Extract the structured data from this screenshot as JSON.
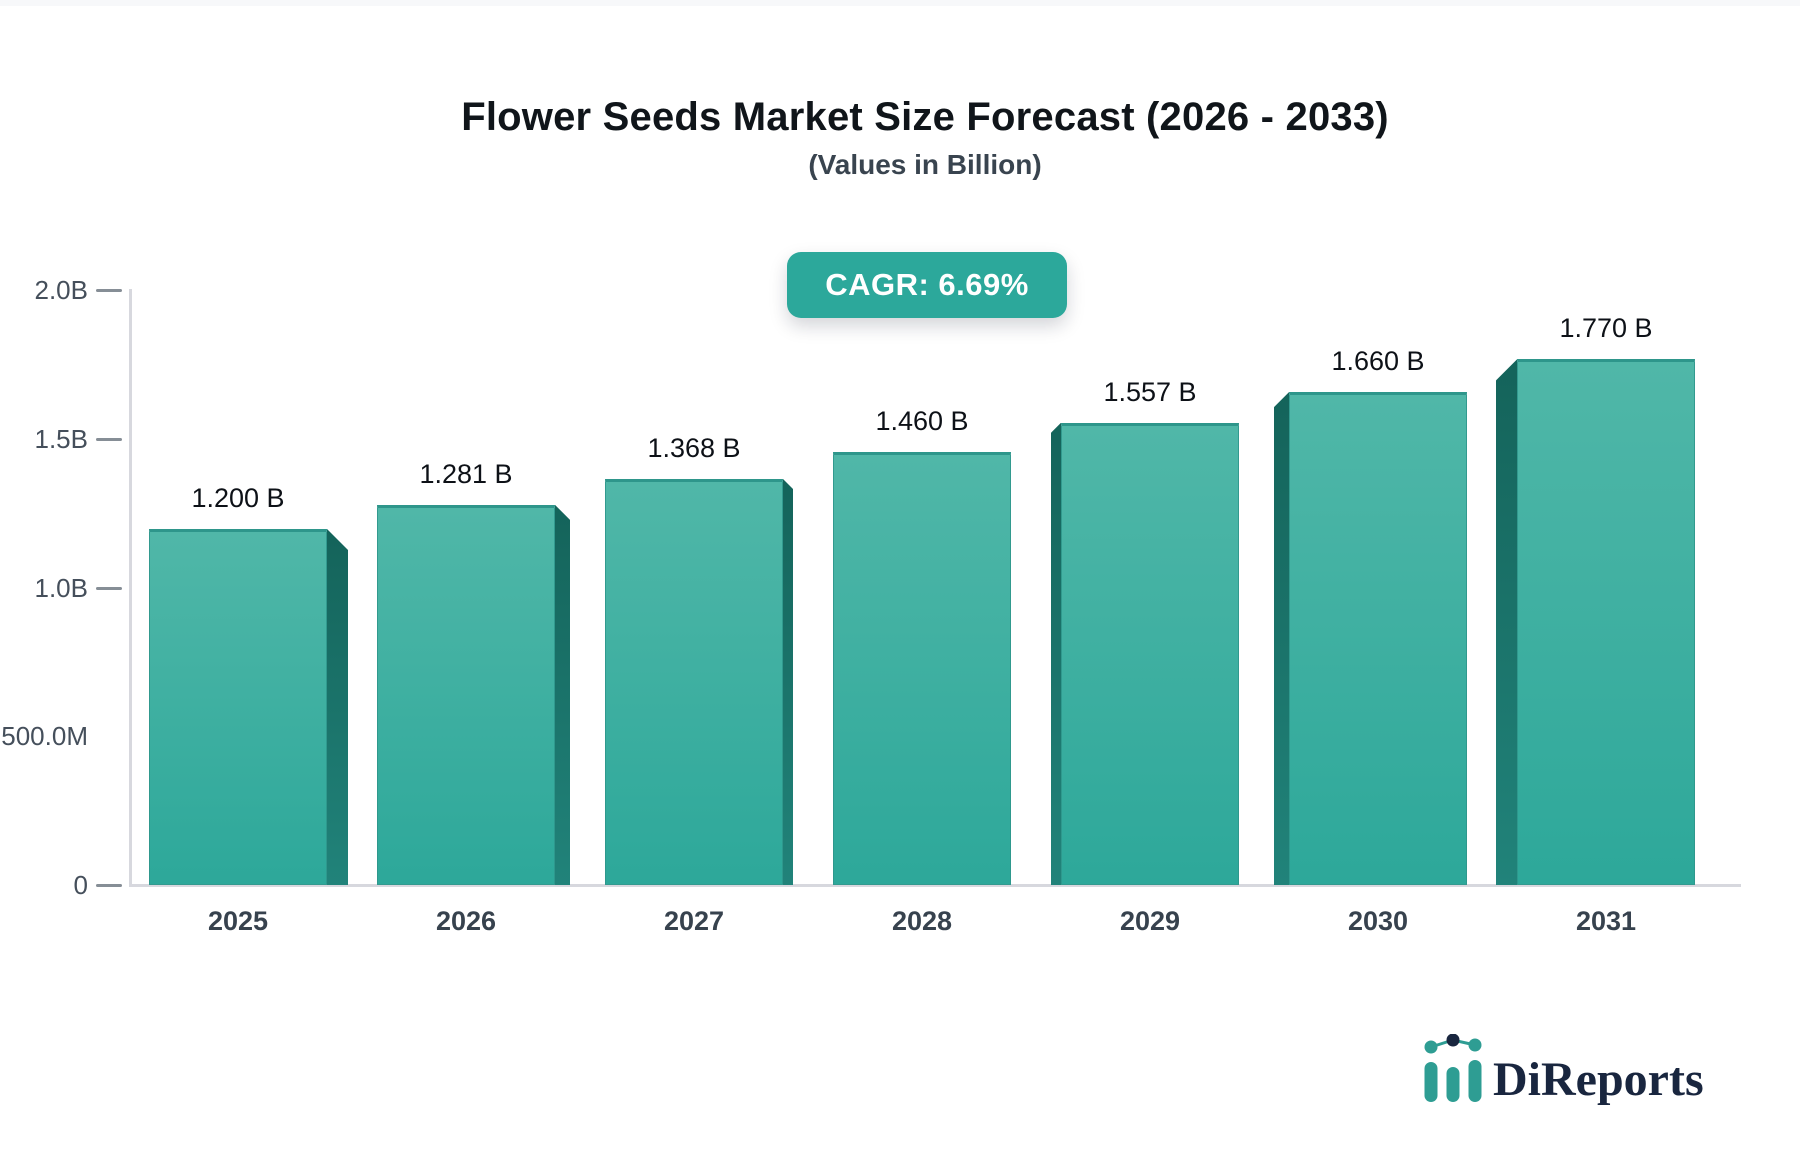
{
  "header": {
    "title": "Flower Seeds Market Size Forecast (2026 - 2033)",
    "subtitle": "(Values in Billion)"
  },
  "badge": {
    "label": "CAGR: 6.69%",
    "background": "#2ca89b",
    "text_color": "#ffffff"
  },
  "chart_data": {
    "type": "bar",
    "title": "Flower Seeds Market Size Forecast (2026 - 2033)",
    "subtitle": "(Values in Billion)",
    "cagr": "6.69%",
    "categories": [
      "2025",
      "2026",
      "2027",
      "2028",
      "2029",
      "2030",
      "2031"
    ],
    "values": [
      1.2,
      1.281,
      1.368,
      1.46,
      1.557,
      1.66,
      1.77
    ],
    "value_labels": [
      "1.200 B",
      "1.281 B",
      "1.368 B",
      "1.460 B",
      "1.557 B",
      "1.660 B",
      "1.770 B"
    ],
    "xlabel": "",
    "ylabel": "",
    "ylim": [
      0,
      2.0
    ],
    "yticks": [
      {
        "label": "2.0B",
        "value": 2.0,
        "dash": true
      },
      {
        "label": "1.5B",
        "value": 1.5,
        "dash": true
      },
      {
        "label": "1.0B",
        "value": 1.0,
        "dash": true
      },
      {
        "label": "500.0M",
        "value": 0.5,
        "dash": false
      },
      {
        "label": "0",
        "value": 0,
        "dash": true
      }
    ],
    "grid": false,
    "legend": false,
    "bar_style": {
      "face_top": "#50b7a8",
      "face_bottom": "#2da89a",
      "face_border": "#2e968b",
      "side_dark": "#14635a",
      "side_light": "#21837a"
    },
    "axis_colors": {
      "line": "#d7d8de",
      "tick_dash": "#868e96",
      "y_label": "#454f5b",
      "x_label": "#37424e"
    }
  },
  "watermark": {
    "brand": "DiReports",
    "text_color": "#19263f",
    "icon": "bar-chart-logo-icon",
    "icon_teal": "#2e9d93",
    "icon_navy": "#19263f"
  }
}
